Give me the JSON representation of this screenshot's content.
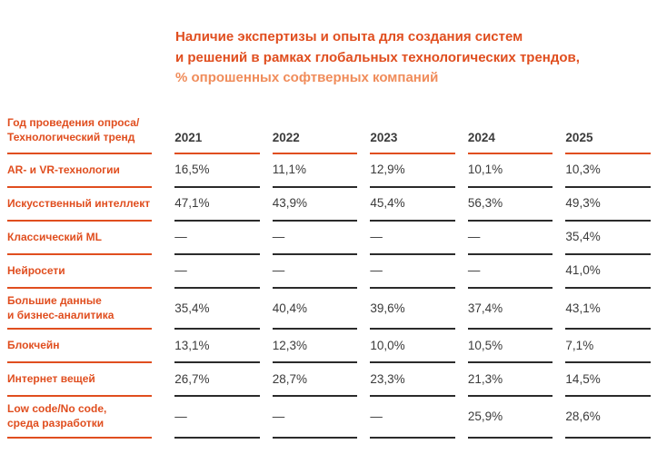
{
  "title": {
    "main": "Наличие экспертизы и опыта для создания систем\nи решений в рамках глобальных технологических трендов,",
    "subtitle": "% опрошенных софтверных компаний"
  },
  "table": {
    "corner_header": "Год проведения опроса/\nТехнологический тренд",
    "years": [
      "2021",
      "2022",
      "2023",
      "2024",
      "2025"
    ],
    "rows": [
      {
        "label": "AR- и  VR-технологии",
        "values": [
          "16,5%",
          "11,1%",
          "12,9%",
          "10,1%",
          "10,3%"
        ]
      },
      {
        "label": "Искусственный интеллект",
        "values": [
          "47,1%",
          "43,9%",
          "45,4%",
          "56,3%",
          "49,3%"
        ]
      },
      {
        "label": "Классический ML",
        "values": [
          "—",
          "—",
          "—",
          "—",
          "35,4%"
        ]
      },
      {
        "label": "Нейросети",
        "values": [
          "—",
          "—",
          "—",
          "—",
          "41,0%"
        ]
      },
      {
        "label": "Большие данные\nи бизнес-аналитика",
        "values": [
          "35,4%",
          "40,4%",
          "39,6%",
          "37,4%",
          "43,1%"
        ]
      },
      {
        "label": "Блокчейн",
        "values": [
          "13,1%",
          "12,3%",
          "10,0%",
          "10,5%",
          "7,1%"
        ]
      },
      {
        "label": "Интернет вещей",
        "values": [
          "26,7%",
          "28,7%",
          "23,3%",
          "21,3%",
          "14,5%"
        ]
      },
      {
        "label": "Low code/No code,\nсреда разработки",
        "values": [
          "—",
          "—",
          "—",
          "25,9%",
          "28,6%"
        ]
      }
    ]
  },
  "chart_data": {
    "type": "table",
    "title": "Наличие экспертизы и опыта для создания систем и решений в рамках глобальных технологических трендов, % опрошенных софтверных компаний",
    "columns": [
      "2021",
      "2022",
      "2023",
      "2024",
      "2025"
    ],
    "rows": [
      {
        "label": "AR- и VR-технологии",
        "values": [
          16.5,
          11.1,
          12.9,
          10.1,
          10.3
        ]
      },
      {
        "label": "Искусственный интеллект",
        "values": [
          47.1,
          43.9,
          45.4,
          56.3,
          49.3
        ]
      },
      {
        "label": "Классический ML",
        "values": [
          null,
          null,
          null,
          null,
          35.4
        ]
      },
      {
        "label": "Нейросети",
        "values": [
          null,
          null,
          null,
          null,
          41.0
        ]
      },
      {
        "label": "Большие данные и бизнес-аналитика",
        "values": [
          35.4,
          40.4,
          39.6,
          37.4,
          43.1
        ]
      },
      {
        "label": "Блокчейн",
        "values": [
          13.1,
          12.3,
          10.0,
          10.5,
          7.1
        ]
      },
      {
        "label": "Интернет вещей",
        "values": [
          26.7,
          28.7,
          23.3,
          21.3,
          14.5
        ]
      },
      {
        "label": "Low code/No code, среда разработки",
        "values": [
          null,
          null,
          null,
          25.9,
          28.6
        ]
      }
    ],
    "unit": "% опрошенных софтверных компаний",
    "missing_value_marker": "—"
  },
  "colors": {
    "accent": "#E04E1F",
    "subtitle_accent": "#F08C5A",
    "value_text": "#3B3B3B",
    "value_line": "#2B2B2B"
  }
}
